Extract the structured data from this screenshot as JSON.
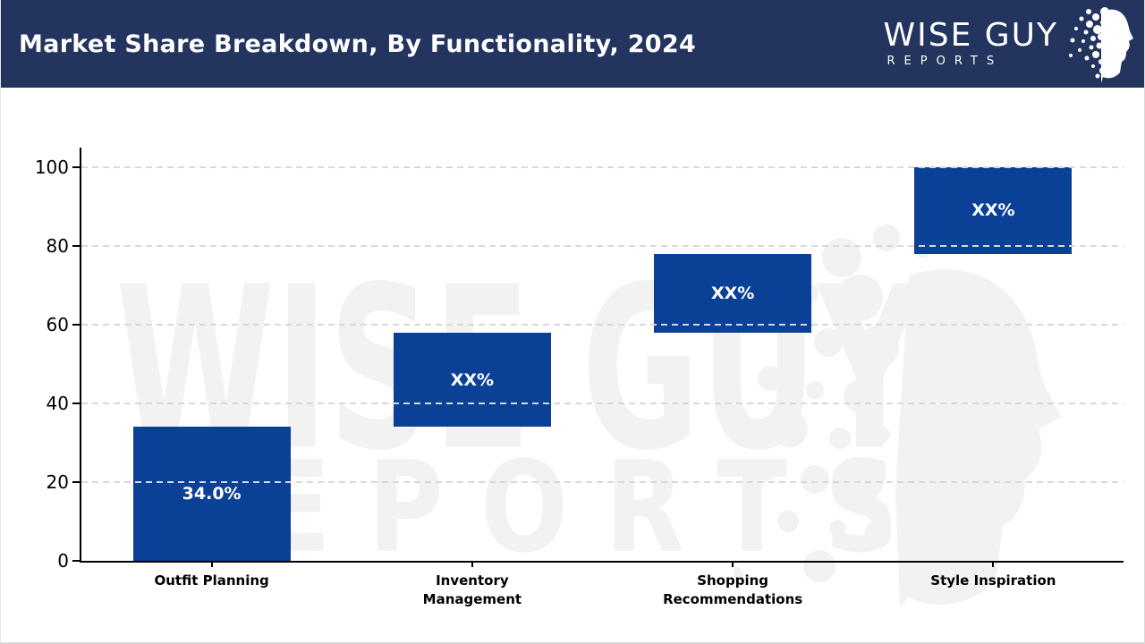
{
  "header": {
    "title": "Market Share Breakdown, By Functionality, 2024",
    "logo": {
      "line1": "WISE GUY",
      "line2": "REPORTS"
    }
  },
  "watermark": {
    "line1": "WISE GUY",
    "line2": "REPORTS"
  },
  "colors": {
    "header_bg": "#23345f",
    "bar": "#0a4196",
    "bar_label": "#ffffff",
    "grid": "#d8d8d8",
    "axis": "#000000",
    "watermark": "#f2f2f2"
  },
  "chart_data": {
    "type": "bar",
    "subtype": "waterfall",
    "title": "Market Share Breakdown, By Functionality, 2024",
    "categories": [
      "Outfit Planning",
      "Inventory Management",
      "Shopping Recommendations",
      "Style Inspiration"
    ],
    "bars": [
      {
        "category": "Outfit Planning",
        "start": 0,
        "end": 34,
        "label": "34.0%"
      },
      {
        "category": "Inventory Management",
        "start": 34,
        "end": 58,
        "label": "XX%"
      },
      {
        "category": "Shopping Recommendations",
        "start": 58,
        "end": 78,
        "label": "XX%"
      },
      {
        "category": "Style Inspiration",
        "start": 78,
        "end": 100,
        "label": "XX%"
      }
    ],
    "xlabel": "",
    "ylabel": "",
    "ylim": [
      0,
      100
    ],
    "yticks": [
      0,
      20,
      40,
      60,
      80,
      100
    ],
    "grid": "horizontal-dashed",
    "legend": "none"
  }
}
